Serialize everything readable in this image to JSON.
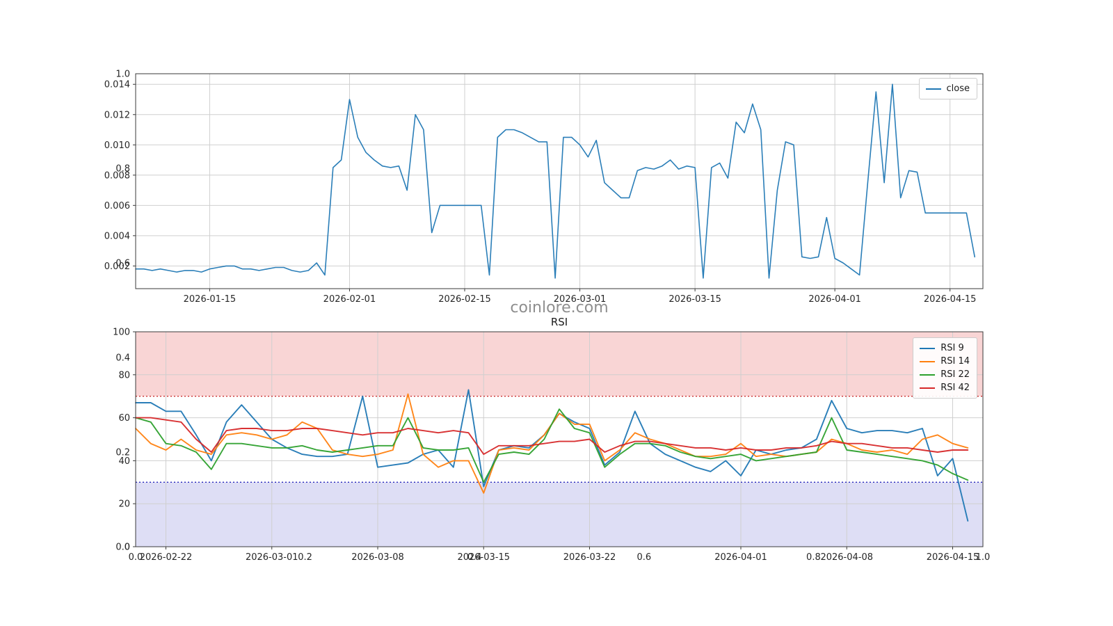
{
  "figure": {
    "background": "#ffffff"
  },
  "watermark": {
    "text": "coinlore.com",
    "color": "#8e8e8e"
  },
  "overlay_axis": {
    "ytick_labels": [
      "1.0",
      "0.8",
      "0.6",
      "0.4",
      "0.2",
      "0.0"
    ],
    "xtick_labels": [
      "0.0",
      "0.2",
      "0.4",
      "0.6",
      "0.8",
      "1.0"
    ]
  },
  "chart_data": [
    {
      "type": "line",
      "title": "",
      "x_start_date": "2026-01-06",
      "x_interval": "daily",
      "xlim": [
        "2026-01-06",
        "2026-04-19"
      ],
      "ylim": [
        0.0005,
        0.0147
      ],
      "yticks": [
        0.002,
        0.004,
        0.006,
        0.008,
        0.01,
        0.012,
        0.014
      ],
      "ytick_labels": [
        "0.002",
        "0.004",
        "0.006",
        "0.008",
        "0.010",
        "0.012",
        "0.014"
      ],
      "xticks": [
        "2026-01-15",
        "2026-02-01",
        "2026-02-15",
        "2026-03-01",
        "2026-03-15",
        "2026-04-01",
        "2026-04-15"
      ],
      "grid": true,
      "legend_position": "upper right",
      "series": [
        {
          "name": "close",
          "color": "#1f77b4",
          "values": [
            0.0018,
            0.0018,
            0.0017,
            0.0018,
            0.0017,
            0.0016,
            0.0017,
            0.0017,
            0.0016,
            0.0018,
            0.0019,
            0.002,
            0.002,
            0.0018,
            0.0018,
            0.0017,
            0.0018,
            0.0019,
            0.0019,
            0.0017,
            0.0016,
            0.0017,
            0.0022,
            0.0014,
            0.0085,
            0.009,
            0.013,
            0.0105,
            0.0095,
            0.009,
            0.0086,
            0.0085,
            0.0086,
            0.007,
            0.012,
            0.011,
            0.0042,
            0.006,
            0.006,
            0.006,
            0.006,
            0.006,
            0.006,
            0.0014,
            0.0105,
            0.011,
            0.011,
            0.0108,
            0.0105,
            0.0102,
            0.0102,
            0.0012,
            0.0105,
            0.0105,
            0.01,
            0.0092,
            0.0103,
            0.0075,
            0.007,
            0.0065,
            0.0065,
            0.0083,
            0.0085,
            0.0084,
            0.0086,
            0.009,
            0.0084,
            0.0086,
            0.0085,
            0.0012,
            0.0085,
            0.0088,
            0.0078,
            0.0115,
            0.0108,
            0.0127,
            0.011,
            0.0012,
            0.007,
            0.0102,
            0.01,
            0.0026,
            0.0025,
            0.0026,
            0.0052,
            0.0025,
            0.0022,
            0.0018,
            0.0014,
            0.0075,
            0.0135,
            0.0075,
            0.014,
            0.0065,
            0.0083,
            0.0082,
            0.0055,
            0.0055,
            0.0055,
            0.0055,
            0.0055,
            0.0055,
            0.0026
          ]
        }
      ]
    },
    {
      "type": "line",
      "title": "RSI",
      "x_start_date": "2026-02-20",
      "x_interval": "daily",
      "xlim": [
        "2026-02-20",
        "2026-04-17"
      ],
      "ylim": [
        0,
        100
      ],
      "yticks": [
        0,
        20,
        40,
        60,
        80,
        100
      ],
      "ytick_labels": [
        "0",
        "20",
        "40",
        "60",
        "80",
        "100"
      ],
      "xticks": [
        "2026-02-22",
        "2026-03-01",
        "2026-03-08",
        "2026-03-15",
        "2026-03-22",
        "2026-04-01",
        "2026-04-08",
        "2026-04-15"
      ],
      "grid": true,
      "legend_position": "upper right",
      "bands": [
        {
          "y1": 70,
          "y2": 100,
          "color": "#f9d5d5"
        },
        {
          "y1": 0,
          "y2": 30,
          "color": "#dedef5"
        }
      ],
      "hlines": [
        {
          "y": 70,
          "color": "#cc3333"
        },
        {
          "y": 30,
          "color": "#2424bb"
        }
      ],
      "series": [
        {
          "name": "RSI 9",
          "color": "#1f77b4",
          "values": [
            67,
            67,
            63,
            63,
            52,
            40,
            58,
            66,
            58,
            50,
            46,
            43,
            42,
            42,
            43,
            70,
            37,
            38,
            39,
            43,
            45,
            37,
            73,
            28,
            45,
            47,
            46,
            52,
            62,
            58,
            55,
            38,
            44,
            63,
            48,
            43,
            40,
            37,
            35,
            40,
            33,
            45,
            43,
            45,
            46,
            50,
            68,
            55,
            53,
            54,
            54,
            53,
            55,
            33,
            41,
            12
          ]
        },
        {
          "name": "RSI 14",
          "color": "#ff7f0e",
          "values": [
            55,
            48,
            45,
            50,
            45,
            43,
            52,
            53,
            52,
            50,
            52,
            58,
            55,
            45,
            43,
            42,
            43,
            45,
            71,
            43,
            37,
            40,
            40,
            25,
            45,
            46,
            45,
            52,
            62,
            57,
            57,
            40,
            45,
            53,
            50,
            48,
            45,
            42,
            42,
            43,
            48,
            42,
            43,
            42,
            43,
            44,
            50,
            48,
            45,
            44,
            45,
            43,
            50,
            52,
            48,
            46
          ]
        },
        {
          "name": "RSI 22",
          "color": "#2ca02c",
          "values": [
            60,
            58,
            48,
            47,
            44,
            36,
            48,
            48,
            47,
            46,
            46,
            47,
            45,
            44,
            45,
            46,
            47,
            47,
            60,
            46,
            45,
            45,
            46,
            30,
            43,
            44,
            43,
            50,
            64,
            55,
            53,
            37,
            43,
            48,
            48,
            47,
            44,
            42,
            41,
            42,
            43,
            40,
            41,
            42,
            43,
            44,
            60,
            45,
            44,
            43,
            42,
            41,
            40,
            38,
            34,
            31
          ]
        },
        {
          "name": "RSI 42",
          "color": "#d62728",
          "values": [
            60,
            60,
            59,
            58,
            50,
            44,
            54,
            55,
            55,
            54,
            54,
            55,
            55,
            54,
            53,
            52,
            53,
            53,
            55,
            54,
            53,
            54,
            53,
            43,
            47,
            47,
            47,
            48,
            49,
            49,
            50,
            44,
            47,
            49,
            49,
            48,
            47,
            46,
            46,
            45,
            46,
            45,
            45,
            46,
            46,
            47,
            49,
            48,
            48,
            47,
            46,
            46,
            45,
            44,
            45,
            45
          ]
        }
      ]
    }
  ]
}
